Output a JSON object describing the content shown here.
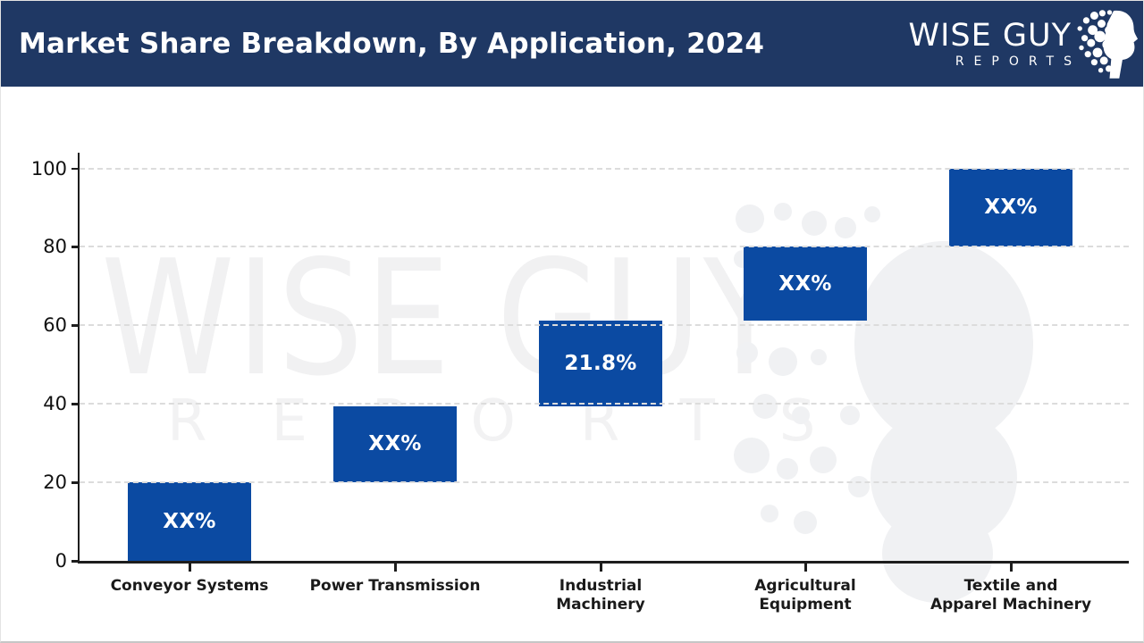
{
  "header": {
    "title": "Market Share Breakdown, By Application, 2024",
    "bg_color": "#1f3864",
    "logo": {
      "line1": "WISE GUY",
      "line2": "REPORTS"
    }
  },
  "watermark": {
    "line1": "WISE GUY",
    "line2": "REPORTS"
  },
  "chart_data": {
    "type": "bar",
    "subtype": "waterfall-floating-segments",
    "title": "Market Share Breakdown, By Application, 2024",
    "categories": [
      "Conveyor Systems",
      "Power Transmission",
      "Industrial\nMachinery",
      "Agricultural\nEquipment",
      "Textile and\nApparel Machinery"
    ],
    "series": [
      {
        "name": "Market share (%)",
        "segments": [
          {
            "category": "Conveyor Systems",
            "start": 0,
            "end": 20,
            "label": "XX%"
          },
          {
            "category": "Power Transmission",
            "start": 20,
            "end": 39.4,
            "label": "XX%"
          },
          {
            "category": "Industrial Machinery",
            "start": 39.4,
            "end": 61.2,
            "label": "21.8%"
          },
          {
            "category": "Agricultural Equipment",
            "start": 61.2,
            "end": 80,
            "label": "XX%"
          },
          {
            "category": "Textile and Apparel Machinery",
            "start": 80,
            "end": 100,
            "label": "XX%"
          }
        ]
      }
    ],
    "xlabel": "",
    "ylabel": "",
    "ylim": [
      0,
      100
    ],
    "yticks": [
      0,
      20,
      40,
      60,
      80,
      100
    ],
    "bar_color": "#0b4aa2",
    "grid": "horizontal-dashed",
    "legend": "none"
  }
}
